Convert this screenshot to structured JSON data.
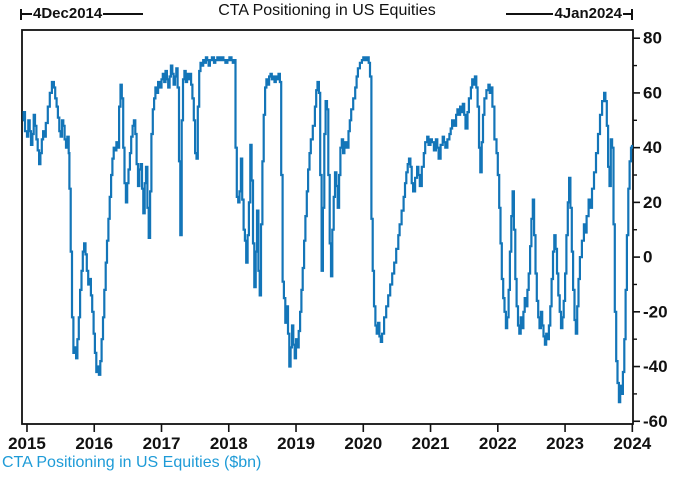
{
  "header": {
    "title": "CTA Positioning in US Equities",
    "start_label": "4Dec2014",
    "end_label": "4Jan2024"
  },
  "caption": {
    "text": "CTA Positioning in US Equities ($bn)"
  },
  "colors": {
    "line": "#1375b8",
    "caption": "#1e9bd7",
    "axis": "#111111",
    "background": "#ffffff"
  },
  "chart_data": {
    "type": "line",
    "title": "CTA Positioning in US Equities",
    "series_name": "CTA Positioning in US Equities ($bn)",
    "x_unit": "decimal_year",
    "x_range": [
      2014.926,
      2024.01
    ],
    "x_ticks": [
      2015,
      2016,
      2017,
      2018,
      2019,
      2020,
      2021,
      2022,
      2023,
      2024
    ],
    "ylim": [
      -61,
      83
    ],
    "y_major_ticks": [
      80,
      60,
      40,
      20,
      0,
      -20,
      -40,
      -60
    ],
    "y_minor_ticks": [
      70,
      50,
      30,
      10,
      -10,
      -30,
      -50
    ],
    "grid": false,
    "legend": "none",
    "points": [
      [
        2014.93,
        50
      ],
      [
        2014.95,
        53
      ],
      [
        2014.97,
        46
      ],
      [
        2015.0,
        44
      ],
      [
        2015.02,
        50
      ],
      [
        2015.04,
        46
      ],
      [
        2015.06,
        41
      ],
      [
        2015.08,
        45
      ],
      [
        2015.1,
        52
      ],
      [
        2015.12,
        48
      ],
      [
        2015.14,
        43
      ],
      [
        2015.16,
        39
      ],
      [
        2015.18,
        34
      ],
      [
        2015.2,
        38
      ],
      [
        2015.22,
        43
      ],
      [
        2015.24,
        46
      ],
      [
        2015.26,
        44
      ],
      [
        2015.28,
        49
      ],
      [
        2015.31,
        55
      ],
      [
        2015.34,
        60
      ],
      [
        2015.37,
        64
      ],
      [
        2015.4,
        62
      ],
      [
        2015.42,
        58
      ],
      [
        2015.44,
        55
      ],
      [
        2015.46,
        51
      ],
      [
        2015.48,
        46
      ],
      [
        2015.5,
        44
      ],
      [
        2015.52,
        50
      ],
      [
        2015.54,
        48
      ],
      [
        2015.56,
        43
      ],
      [
        2015.58,
        40
      ],
      [
        2015.6,
        44
      ],
      [
        2015.62,
        38
      ],
      [
        2015.63,
        25
      ],
      [
        2015.65,
        2
      ],
      [
        2015.67,
        -22
      ],
      [
        2015.69,
        -35
      ],
      [
        2015.71,
        -33
      ],
      [
        2015.73,
        -37
      ],
      [
        2015.75,
        -30
      ],
      [
        2015.77,
        -22
      ],
      [
        2015.79,
        -12
      ],
      [
        2015.81,
        -5
      ],
      [
        2015.83,
        2
      ],
      [
        2015.85,
        5
      ],
      [
        2015.87,
        1
      ],
      [
        2015.89,
        -5
      ],
      [
        2015.91,
        -10
      ],
      [
        2015.93,
        -8
      ],
      [
        2015.95,
        -14
      ],
      [
        2015.97,
        -20
      ],
      [
        2015.99,
        -28
      ],
      [
        2016.01,
        -35
      ],
      [
        2016.03,
        -42
      ],
      [
        2016.05,
        -40
      ],
      [
        2016.07,
        -43
      ],
      [
        2016.09,
        -38
      ],
      [
        2016.11,
        -30
      ],
      [
        2016.13,
        -22
      ],
      [
        2016.15,
        -12
      ],
      [
        2016.17,
        -2
      ],
      [
        2016.19,
        6
      ],
      [
        2016.21,
        14
      ],
      [
        2016.23,
        22
      ],
      [
        2016.25,
        30
      ],
      [
        2016.27,
        36
      ],
      [
        2016.29,
        40
      ],
      [
        2016.31,
        39
      ],
      [
        2016.33,
        42
      ],
      [
        2016.35,
        40
      ],
      [
        2016.37,
        55
      ],
      [
        2016.39,
        63
      ],
      [
        2016.41,
        58
      ],
      [
        2016.43,
        40
      ],
      [
        2016.45,
        27
      ],
      [
        2016.47,
        20
      ],
      [
        2016.49,
        27
      ],
      [
        2016.51,
        32
      ],
      [
        2016.53,
        38
      ],
      [
        2016.55,
        44
      ],
      [
        2016.57,
        48
      ],
      [
        2016.59,
        50
      ],
      [
        2016.61,
        45
      ],
      [
        2016.63,
        34
      ],
      [
        2016.65,
        26
      ],
      [
        2016.67,
        32
      ],
      [
        2016.69,
        34
      ],
      [
        2016.71,
        25
      ],
      [
        2016.73,
        16
      ],
      [
        2016.75,
        27
      ],
      [
        2016.77,
        33
      ],
      [
        2016.79,
        18
      ],
      [
        2016.81,
        7
      ],
      [
        2016.83,
        24
      ],
      [
        2016.85,
        45
      ],
      [
        2016.87,
        54
      ],
      [
        2016.89,
        58
      ],
      [
        2016.91,
        62
      ],
      [
        2016.93,
        60
      ],
      [
        2016.95,
        64
      ],
      [
        2016.97,
        62
      ],
      [
        2017.0,
        65
      ],
      [
        2017.02,
        67
      ],
      [
        2017.04,
        64
      ],
      [
        2017.06,
        68
      ],
      [
        2017.08,
        65
      ],
      [
        2017.1,
        62
      ],
      [
        2017.12,
        66
      ],
      [
        2017.14,
        70
      ],
      [
        2017.16,
        67
      ],
      [
        2017.18,
        63
      ],
      [
        2017.2,
        66
      ],
      [
        2017.22,
        69
      ],
      [
        2017.24,
        62
      ],
      [
        2017.26,
        35
      ],
      [
        2017.28,
        8
      ],
      [
        2017.3,
        50
      ],
      [
        2017.32,
        65
      ],
      [
        2017.34,
        68
      ],
      [
        2017.36,
        64
      ],
      [
        2017.38,
        67
      ],
      [
        2017.4,
        65
      ],
      [
        2017.42,
        67
      ],
      [
        2017.44,
        63
      ],
      [
        2017.46,
        58
      ],
      [
        2017.48,
        50
      ],
      [
        2017.5,
        38
      ],
      [
        2017.52,
        36
      ],
      [
        2017.54,
        55
      ],
      [
        2017.56,
        68
      ],
      [
        2017.58,
        71
      ],
      [
        2017.6,
        70
      ],
      [
        2017.62,
        72
      ],
      [
        2017.64,
        71
      ],
      [
        2017.66,
        73
      ],
      [
        2017.68,
        72
      ],
      [
        2017.7,
        70
      ],
      [
        2017.72,
        72
      ],
      [
        2017.75,
        73
      ],
      [
        2017.78,
        71
      ],
      [
        2017.8,
        72
      ],
      [
        2017.83,
        73
      ],
      [
        2017.86,
        72
      ],
      [
        2017.89,
        73
      ],
      [
        2017.92,
        72
      ],
      [
        2017.95,
        71
      ],
      [
        2017.98,
        72
      ],
      [
        2018.01,
        73
      ],
      [
        2018.04,
        72
      ],
      [
        2018.06,
        71
      ],
      [
        2018.08,
        72
      ],
      [
        2018.1,
        40
      ],
      [
        2018.12,
        22
      ],
      [
        2018.14,
        20
      ],
      [
        2018.16,
        24
      ],
      [
        2018.18,
        36
      ],
      [
        2018.2,
        21
      ],
      [
        2018.22,
        10
      ],
      [
        2018.24,
        6
      ],
      [
        2018.26,
        -2
      ],
      [
        2018.28,
        8
      ],
      [
        2018.3,
        20
      ],
      [
        2018.32,
        41
      ],
      [
        2018.34,
        28
      ],
      [
        2018.36,
        5
      ],
      [
        2018.38,
        -11
      ],
      [
        2018.4,
        2
      ],
      [
        2018.42,
        17
      ],
      [
        2018.44,
        -5
      ],
      [
        2018.46,
        -14
      ],
      [
        2018.48,
        12
      ],
      [
        2018.5,
        35
      ],
      [
        2018.52,
        52
      ],
      [
        2018.54,
        62
      ],
      [
        2018.56,
        65
      ],
      [
        2018.58,
        63
      ],
      [
        2018.6,
        66
      ],
      [
        2018.62,
        67
      ],
      [
        2018.64,
        65
      ],
      [
        2018.66,
        66
      ],
      [
        2018.68,
        64
      ],
      [
        2018.7,
        66
      ],
      [
        2018.72,
        65
      ],
      [
        2018.74,
        67
      ],
      [
        2018.76,
        64
      ],
      [
        2018.78,
        30
      ],
      [
        2018.8,
        -9
      ],
      [
        2018.82,
        -15
      ],
      [
        2018.84,
        -24
      ],
      [
        2018.86,
        -18
      ],
      [
        2018.88,
        -28
      ],
      [
        2018.9,
        -40
      ],
      [
        2018.92,
        -33
      ],
      [
        2018.94,
        -25
      ],
      [
        2018.96,
        -32
      ],
      [
        2018.98,
        -37
      ],
      [
        2019.0,
        -30
      ],
      [
        2019.02,
        -33
      ],
      [
        2019.04,
        -27
      ],
      [
        2019.06,
        -20
      ],
      [
        2019.08,
        -12
      ],
      [
        2019.1,
        -4
      ],
      [
        2019.12,
        6
      ],
      [
        2019.14,
        15
      ],
      [
        2019.16,
        24
      ],
      [
        2019.18,
        32
      ],
      [
        2019.2,
        38
      ],
      [
        2019.22,
        43
      ],
      [
        2019.25,
        48
      ],
      [
        2019.28,
        55
      ],
      [
        2019.3,
        61
      ],
      [
        2019.32,
        64
      ],
      [
        2019.34,
        60
      ],
      [
        2019.36,
        30
      ],
      [
        2019.38,
        -5
      ],
      [
        2019.4,
        18
      ],
      [
        2019.42,
        45
      ],
      [
        2019.44,
        57
      ],
      [
        2019.46,
        54
      ],
      [
        2019.48,
        30
      ],
      [
        2019.5,
        5
      ],
      [
        2019.52,
        -7
      ],
      [
        2019.54,
        10
      ],
      [
        2019.56,
        22
      ],
      [
        2019.58,
        31
      ],
      [
        2019.6,
        26
      ],
      [
        2019.62,
        18
      ],
      [
        2019.64,
        30
      ],
      [
        2019.66,
        40
      ],
      [
        2019.68,
        43
      ],
      [
        2019.7,
        38
      ],
      [
        2019.72,
        42
      ],
      [
        2019.75,
        40
      ],
      [
        2019.78,
        46
      ],
      [
        2019.8,
        50
      ],
      [
        2019.82,
        54
      ],
      [
        2019.85,
        58
      ],
      [
        2019.88,
        62
      ],
      [
        2019.9,
        66
      ],
      [
        2019.92,
        69
      ],
      [
        2019.95,
        71
      ],
      [
        2019.98,
        72
      ],
      [
        2020.0,
        73
      ],
      [
        2020.03,
        72
      ],
      [
        2020.06,
        73
      ],
      [
        2020.08,
        71
      ],
      [
        2020.1,
        66
      ],
      [
        2020.12,
        14
      ],
      [
        2020.14,
        -5
      ],
      [
        2020.16,
        -18
      ],
      [
        2020.18,
        -25
      ],
      [
        2020.2,
        -28
      ],
      [
        2020.22,
        -24
      ],
      [
        2020.24,
        -29
      ],
      [
        2020.26,
        -31
      ],
      [
        2020.28,
        -28
      ],
      [
        2020.31,
        -22
      ],
      [
        2020.34,
        -18
      ],
      [
        2020.37,
        -14
      ],
      [
        2020.4,
        -10
      ],
      [
        2020.43,
        -6
      ],
      [
        2020.46,
        -2
      ],
      [
        2020.49,
        3
      ],
      [
        2020.52,
        8
      ],
      [
        2020.54,
        12
      ],
      [
        2020.57,
        17
      ],
      [
        2020.6,
        22
      ],
      [
        2020.62,
        27
      ],
      [
        2020.64,
        31
      ],
      [
        2020.66,
        34
      ],
      [
        2020.68,
        36
      ],
      [
        2020.7,
        33
      ],
      [
        2020.72,
        27
      ],
      [
        2020.74,
        24
      ],
      [
        2020.77,
        29
      ],
      [
        2020.8,
        33
      ],
      [
        2020.82,
        30
      ],
      [
        2020.84,
        26
      ],
      [
        2020.87,
        33
      ],
      [
        2020.9,
        38
      ],
      [
        2020.92,
        42
      ],
      [
        2020.95,
        44
      ],
      [
        2020.97,
        41
      ],
      [
        2021.0,
        43
      ],
      [
        2021.02,
        42
      ],
      [
        2021.05,
        39
      ],
      [
        2021.08,
        43
      ],
      [
        2021.1,
        40
      ],
      [
        2021.12,
        36
      ],
      [
        2021.15,
        41
      ],
      [
        2021.18,
        44
      ],
      [
        2021.2,
        42
      ],
      [
        2021.22,
        40
      ],
      [
        2021.25,
        43
      ],
      [
        2021.28,
        45
      ],
      [
        2021.3,
        47
      ],
      [
        2021.32,
        50
      ],
      [
        2021.35,
        48
      ],
      [
        2021.38,
        52
      ],
      [
        2021.4,
        54
      ],
      [
        2021.42,
        52
      ],
      [
        2021.44,
        55
      ],
      [
        2021.46,
        53
      ],
      [
        2021.48,
        56
      ],
      [
        2021.5,
        52
      ],
      [
        2021.52,
        47
      ],
      [
        2021.55,
        53
      ],
      [
        2021.57,
        58
      ],
      [
        2021.6,
        62
      ],
      [
        2021.62,
        65
      ],
      [
        2021.64,
        63
      ],
      [
        2021.66,
        66
      ],
      [
        2021.68,
        62
      ],
      [
        2021.7,
        55
      ],
      [
        2021.72,
        40
      ],
      [
        2021.74,
        31
      ],
      [
        2021.76,
        42
      ],
      [
        2021.78,
        52
      ],
      [
        2021.8,
        58
      ],
      [
        2021.83,
        61
      ],
      [
        2021.86,
        63
      ],
      [
        2021.88,
        60
      ],
      [
        2021.9,
        62
      ],
      [
        2021.92,
        55
      ],
      [
        2021.95,
        43
      ],
      [
        2021.98,
        38
      ],
      [
        2022.0,
        30
      ],
      [
        2022.02,
        18
      ],
      [
        2022.04,
        5
      ],
      [
        2022.06,
        -8
      ],
      [
        2022.08,
        -15
      ],
      [
        2022.1,
        -20
      ],
      [
        2022.12,
        -26
      ],
      [
        2022.14,
        -22
      ],
      [
        2022.16,
        -12
      ],
      [
        2022.18,
        2
      ],
      [
        2022.2,
        15
      ],
      [
        2022.22,
        24
      ],
      [
        2022.24,
        10
      ],
      [
        2022.26,
        -8
      ],
      [
        2022.28,
        -18
      ],
      [
        2022.3,
        -25
      ],
      [
        2022.32,
        -28
      ],
      [
        2022.34,
        -22
      ],
      [
        2022.36,
        -26
      ],
      [
        2022.38,
        -20
      ],
      [
        2022.4,
        -15
      ],
      [
        2022.42,
        -18
      ],
      [
        2022.44,
        -12
      ],
      [
        2022.46,
        -6
      ],
      [
        2022.48,
        4
      ],
      [
        2022.5,
        14
      ],
      [
        2022.52,
        21
      ],
      [
        2022.54,
        8
      ],
      [
        2022.56,
        -6
      ],
      [
        2022.58,
        -16
      ],
      [
        2022.6,
        -22
      ],
      [
        2022.62,
        -26
      ],
      [
        2022.64,
        -20
      ],
      [
        2022.66,
        -25
      ],
      [
        2022.68,
        -29
      ],
      [
        2022.7,
        -32
      ],
      [
        2022.72,
        -28
      ],
      [
        2022.74,
        -30
      ],
      [
        2022.76,
        -25
      ],
      [
        2022.78,
        -18
      ],
      [
        2022.8,
        -8
      ],
      [
        2022.82,
        2
      ],
      [
        2022.84,
        8
      ],
      [
        2022.86,
        3
      ],
      [
        2022.88,
        -6
      ],
      [
        2022.9,
        -14
      ],
      [
        2022.92,
        -20
      ],
      [
        2022.94,
        -26
      ],
      [
        2022.96,
        -22
      ],
      [
        2022.98,
        -16
      ],
      [
        2023.0,
        -6
      ],
      [
        2023.02,
        8
      ],
      [
        2023.04,
        20
      ],
      [
        2023.06,
        29
      ],
      [
        2023.08,
        18
      ],
      [
        2023.1,
        2
      ],
      [
        2023.12,
        -12
      ],
      [
        2023.14,
        -23
      ],
      [
        2023.16,
        -28
      ],
      [
        2023.18,
        -18
      ],
      [
        2023.2,
        -8
      ],
      [
        2023.22,
        0
      ],
      [
        2023.25,
        6
      ],
      [
        2023.28,
        12
      ],
      [
        2023.3,
        9
      ],
      [
        2023.32,
        15
      ],
      [
        2023.35,
        21
      ],
      [
        2023.38,
        18
      ],
      [
        2023.4,
        25
      ],
      [
        2023.43,
        31
      ],
      [
        2023.46,
        38
      ],
      [
        2023.49,
        45
      ],
      [
        2023.52,
        52
      ],
      [
        2023.55,
        57
      ],
      [
        2023.58,
        60
      ],
      [
        2023.6,
        57
      ],
      [
        2023.62,
        48
      ],
      [
        2023.64,
        33
      ],
      [
        2023.66,
        26
      ],
      [
        2023.68,
        43
      ],
      [
        2023.7,
        40
      ],
      [
        2023.72,
        12
      ],
      [
        2023.74,
        -20
      ],
      [
        2023.76,
        -38
      ],
      [
        2023.78,
        -46
      ],
      [
        2023.8,
        -53
      ],
      [
        2023.82,
        -47
      ],
      [
        2023.84,
        -50
      ],
      [
        2023.86,
        -42
      ],
      [
        2023.88,
        -30
      ],
      [
        2023.9,
        -12
      ],
      [
        2023.92,
        8
      ],
      [
        2023.94,
        25
      ],
      [
        2023.96,
        35
      ],
      [
        2023.98,
        40
      ],
      [
        2024.0,
        41
      ]
    ]
  }
}
